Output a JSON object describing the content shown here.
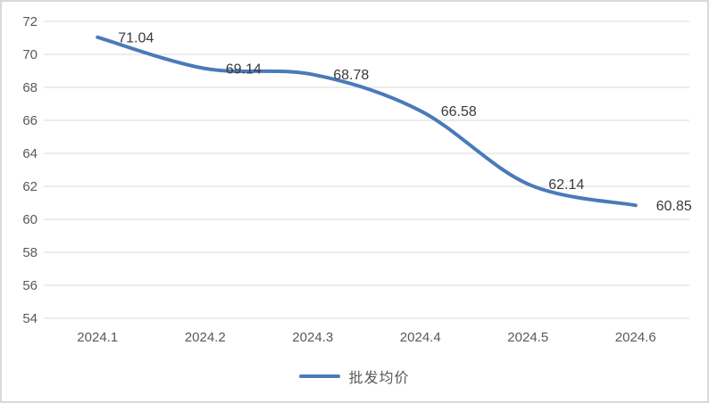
{
  "chart_data": {
    "type": "line",
    "title": "",
    "categories": [
      "2024.1",
      "2024.2",
      "2024.3",
      "2024.4",
      "2024.5",
      "2024.6"
    ],
    "series": [
      {
        "name": "批发均价",
        "values": [
          71.04,
          69.14,
          68.78,
          66.58,
          62.14,
          60.85
        ],
        "data_labels": [
          "71.04",
          "69.14",
          "68.78",
          "66.58",
          "62.14",
          "60.85"
        ],
        "color": "#4a7ab8",
        "smooth": true
      }
    ],
    "ylim": [
      54,
      72
    ],
    "ytick_step": 2,
    "ytick_labels": [
      "54",
      "56",
      "58",
      "60",
      "62",
      "64",
      "66",
      "68",
      "70",
      "72"
    ],
    "grid": true,
    "gridline_color": "#d9d9d9",
    "axis_label_color": "#595959",
    "data_label_color": "#3a3a3a",
    "legend_position": "bottom",
    "background_color": "#ffffff",
    "border_color": "#d9d9d9"
  }
}
